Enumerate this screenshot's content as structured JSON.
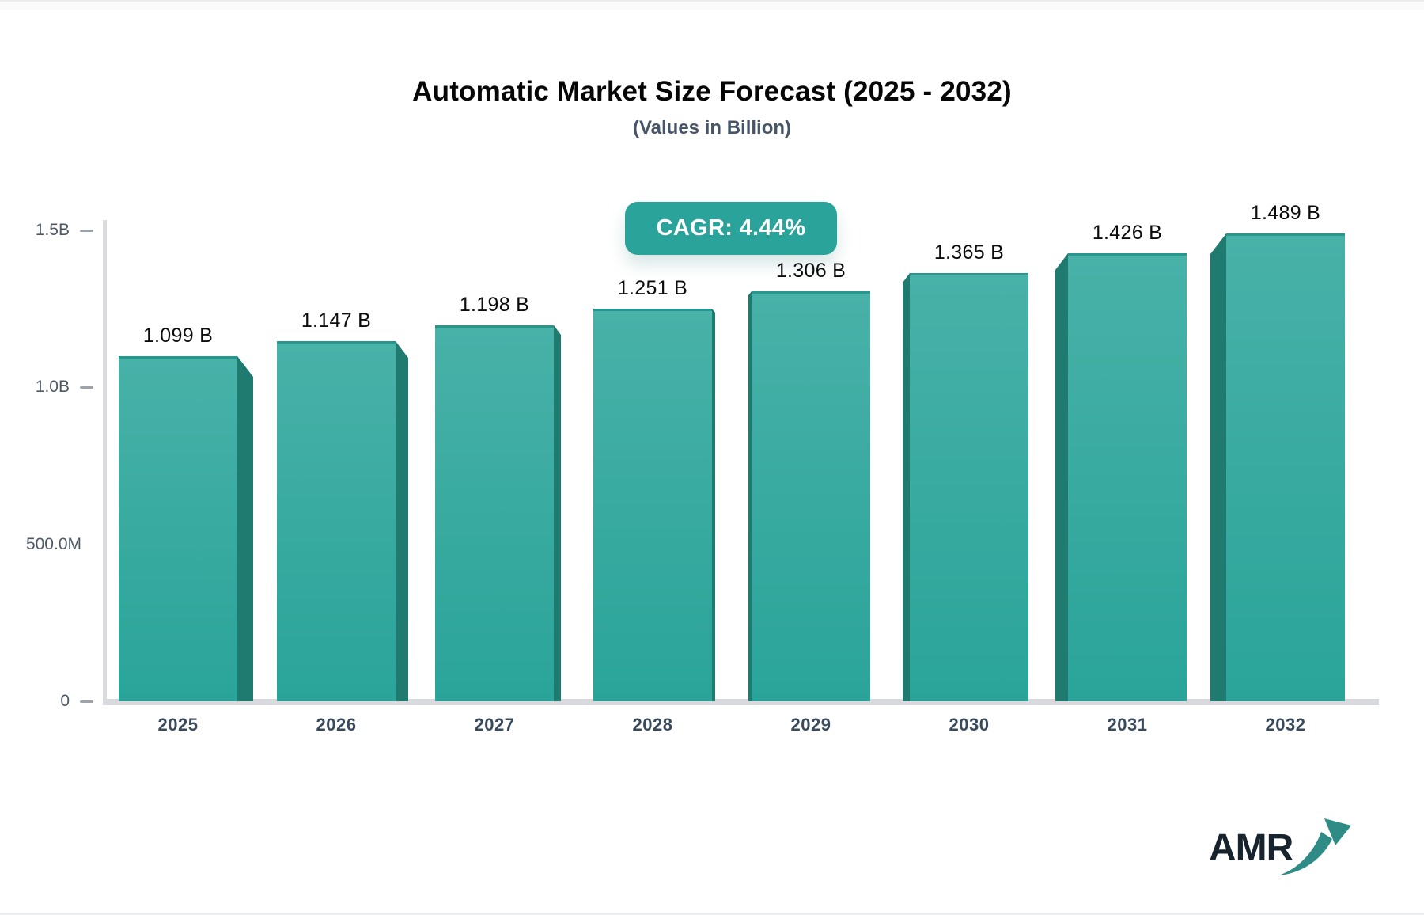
{
  "header": {
    "title": "Automatic Market Size Forecast (2025 - 2032)",
    "subtitle": "(Values in Billion)"
  },
  "badge": {
    "label": "CAGR: 4.44%"
  },
  "logo": {
    "text": "AMR"
  },
  "chart_data": {
    "type": "bar",
    "title": "Automatic Market Size Forecast (2025 - 2032)",
    "subtitle": "(Values in Billion)",
    "annotation": "CAGR: 4.44%",
    "categories": [
      "2025",
      "2026",
      "2027",
      "2028",
      "2029",
      "2030",
      "2031",
      "2032"
    ],
    "values": [
      1.099,
      1.147,
      1.198,
      1.251,
      1.306,
      1.365,
      1.426,
      1.489
    ],
    "value_labels": [
      "1.099 B",
      "1.147 B",
      "1.198 B",
      "1.251 B",
      "1.306 B",
      "1.365 B",
      "1.426 B",
      "1.489 B"
    ],
    "xlabel": "",
    "ylabel": "",
    "ylim": [
      0,
      1.5
    ],
    "y_ticks": [
      {
        "label": "1.5B",
        "value": 1.5,
        "dash": true
      },
      {
        "label": "1.0B",
        "value": 1.0,
        "dash": true
      },
      {
        "label": "500.0M",
        "value": 0.5,
        "dash": false
      },
      {
        "label": "0",
        "value": 0.0,
        "dash": true
      }
    ],
    "legend": null,
    "grid": false,
    "colors": {
      "bar_gradient_top": "#48b1a8",
      "bar_gradient_bottom": "#2aa499",
      "bar_top_edge": "#27968c",
      "bar_side": "#1f7a70",
      "badge_bg": "#2aa39a",
      "axis": "#d9dade",
      "tick": "#9aa3ad",
      "logo_arrow": "#2e8b85"
    }
  }
}
